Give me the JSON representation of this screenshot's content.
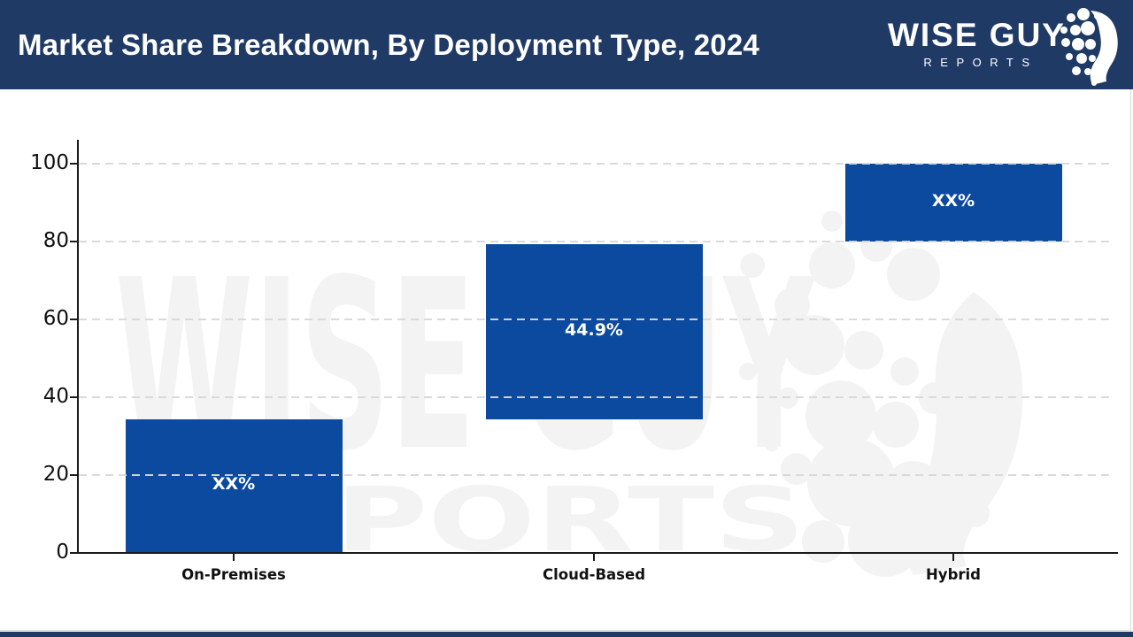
{
  "header": {
    "title": "Market Share Breakdown, By Deployment Type, 2024",
    "background": "#203a66"
  },
  "logo": {
    "name_top": "WISE GUY",
    "name_bottom": "REPORTS"
  },
  "watermark": {
    "big_text": "WISE GUY",
    "small_text": "REPORTS",
    "color": "#f3f3f3"
  },
  "footer": {
    "background": "#203a66"
  },
  "chart_data": {
    "type": "bar",
    "subtype": "stacked-waterfall-segments",
    "title": "Market Share Breakdown, By Deployment Type, 2024",
    "categories": [
      "On-Premises",
      "Cloud-Based",
      "Hybrid"
    ],
    "segments": [
      {
        "category": "On-Premises",
        "from": 0,
        "to": 34.4,
        "label": "XX%"
      },
      {
        "category": "Cloud-Based",
        "from": 34.4,
        "to": 79.3,
        "label": "44.9%"
      },
      {
        "category": "Hybrid",
        "from": 79.9,
        "to": 100,
        "label": "XX%"
      }
    ],
    "xlabel": "",
    "ylabel": "",
    "ylim": [
      0,
      100
    ],
    "yticks": [
      0,
      20,
      40,
      60,
      80,
      100
    ],
    "grid": "horizontal-dashed",
    "legend": false,
    "bar_color": "#0b4a9e",
    "grid_color": "#d9d9d9",
    "axis_color": "#1a1a1a",
    "bar_label_color": "#ffffff"
  }
}
